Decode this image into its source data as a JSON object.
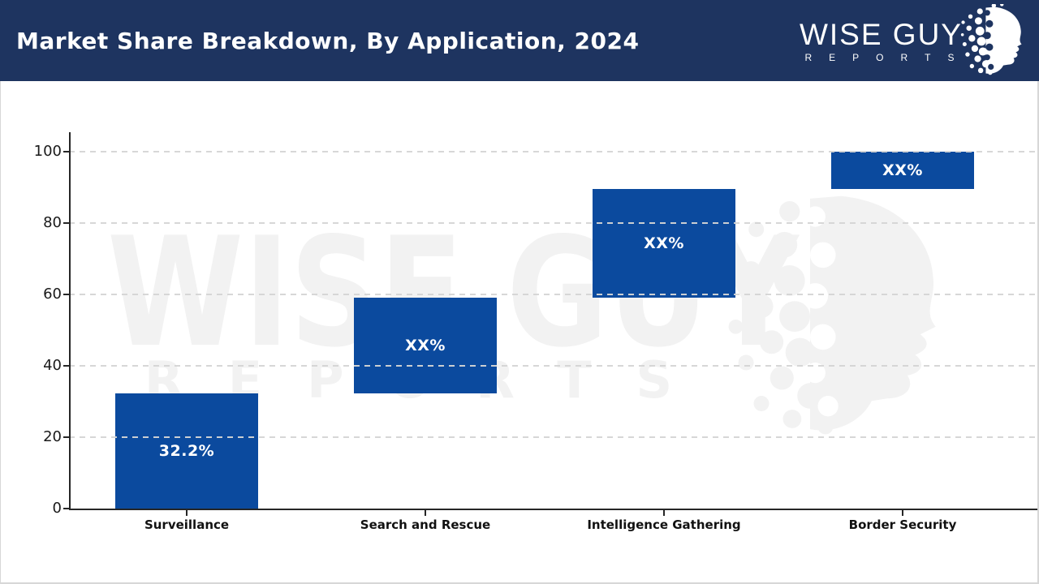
{
  "header": {
    "title": "Market Share Breakdown, By Application, 2024",
    "brand": {
      "line1": "WISE GUY",
      "line2": "REPORTS"
    }
  },
  "watermark": {
    "line1": "WISE GUY",
    "line2": "REPORTS"
  },
  "colors": {
    "header_bg": "#1e3460",
    "bar_blue": "#0b4a9e",
    "gridline": "#d5d5d5",
    "axis": "#262626",
    "watermark_gray": "#f2f2f2",
    "bar_label_text": "#ffffff",
    "category_text": "#111111"
  },
  "chart_data": {
    "type": "bar",
    "subtype": "waterfall",
    "title": "Market Share Breakdown, By Application, 2024",
    "categories": [
      "Surveillance",
      "Search and Rescue",
      "Intelligence Gathering",
      "Border Security"
    ],
    "bars": [
      {
        "category": "Surveillance",
        "start": 0,
        "end": 32.2,
        "label": "32.2%"
      },
      {
        "category": "Search and Rescue",
        "start": 32.2,
        "end": 59.2,
        "label": "XX%"
      },
      {
        "category": "Intelligence Gathering",
        "start": 59.2,
        "end": 89.5,
        "label": "XX%"
      },
      {
        "category": "Border Security",
        "start": 89.5,
        "end": 100.0,
        "label": "XX%"
      }
    ],
    "segment_values": [
      32.2,
      27.0,
      30.3,
      10.5
    ],
    "y_ticks": [
      0,
      20,
      40,
      60,
      80,
      100
    ],
    "ylim": [
      0,
      105.5
    ],
    "xlabel": "",
    "ylabel": "",
    "grid": "dashed-horizontal",
    "gridlines_on_top_of_bars": true,
    "legend": "none"
  }
}
